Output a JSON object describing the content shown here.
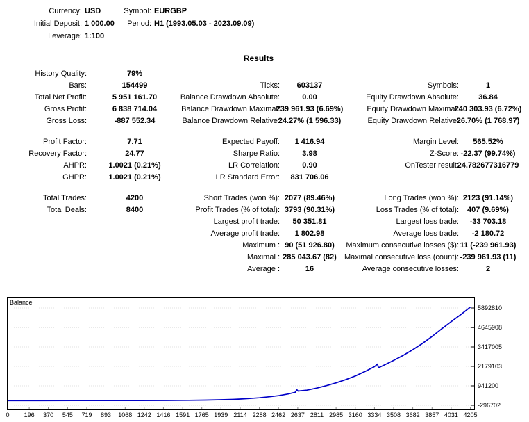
{
  "header": {
    "rows": [
      {
        "l1": "Currency:",
        "v1": "USD",
        "l2": "Symbol:",
        "v2": "EURGBP"
      },
      {
        "l1": "Initial Deposit:",
        "v1": "1 000.00",
        "l2": "Period:",
        "v2": "H1 (1993.05.03 - 2023.09.09)"
      },
      {
        "l1": "Leverage:",
        "v1": "1:100",
        "l2": "",
        "v2": ""
      }
    ]
  },
  "results": {
    "title": "Results",
    "rows": [
      [
        "History Quality:",
        "79%",
        "",
        "",
        "",
        ""
      ],
      [
        "Bars:",
        "154499",
        "Ticks:",
        "603137",
        "Symbols:",
        "1"
      ],
      [
        "Total Net Profit:",
        "5 951 161.70",
        "Balance Drawdown Absolute:",
        "0.00",
        "Equity Drawdown Absolute:",
        "36.84"
      ],
      [
        "Gross Profit:",
        "6 838 714.04",
        "Balance Drawdown Maximal:",
        "239 961.93 (6.69%)",
        "Equity Drawdown Maximal:",
        "240 303.93 (6.72%)"
      ],
      [
        "Gross Loss:",
        "-887 552.34",
        "Balance Drawdown Relative:",
        "24.27% (1 596.33)",
        "Equity Drawdown Relative:",
        "26.70% (1 768.97)"
      ],
      [
        "",
        "",
        "",
        "",
        "",
        ""
      ],
      [
        "Profit Factor:",
        "7.71",
        "Expected Payoff:",
        "1 416.94",
        "Margin Level:",
        "565.52%"
      ],
      [
        "Recovery Factor:",
        "24.77",
        "Sharpe Ratio:",
        "3.98",
        "Z-Score:",
        "-22.37 (99.74%)"
      ],
      [
        "AHPR:",
        "1.0021 (0.21%)",
        "LR Correlation:",
        "0.90",
        "OnTester result:",
        "24.782677316779"
      ],
      [
        "GHPR:",
        "1.0021 (0.21%)",
        "LR Standard Error:",
        "831 706.06",
        "",
        ""
      ],
      [
        "",
        "",
        "",
        "",
        "",
        ""
      ],
      [
        "Total Trades:",
        "4200",
        "Short Trades (won %):",
        "2077 (89.46%)",
        "Long Trades (won %):",
        "2123 (91.14%)"
      ],
      [
        "Total Deals:",
        "8400",
        "Profit Trades (% of total):",
        "3793 (90.31%)",
        "Loss Trades (% of total):",
        "407 (9.69%)"
      ],
      [
        "",
        "",
        "Largest profit trade:",
        "50 351.81",
        "Largest loss trade:",
        "-33 703.18"
      ],
      [
        "",
        "",
        "Average profit trade:",
        "1 802.98",
        "Average loss trade:",
        "-2 180.72"
      ],
      [
        "",
        "",
        "Maximum :",
        "90 (51 926.80)",
        "Maximum consecutive losses ($):",
        "11 (-239 961.93)"
      ],
      [
        "",
        "",
        "Maximal :",
        "285 043.67 (82)",
        "Maximal consecutive loss (count):",
        "-239 961.93 (11)"
      ],
      [
        "",
        "",
        "Average :",
        "16",
        "Average consecutive losses:",
        "2"
      ]
    ]
  },
  "chart_data": {
    "type": "line",
    "title": "Balance",
    "xlabel": "",
    "ylabel": "",
    "xlim": [
      0,
      4240
    ],
    "ylim": [
      -561967,
      6555972
    ],
    "y_ticks": [
      5892810,
      4645908,
      3417005,
      2179103,
      941200,
      -296702
    ],
    "x_ticks": [
      0,
      196,
      370,
      545,
      719,
      893,
      1068,
      1242,
      1416,
      1591,
      1765,
      1939,
      2114,
      2288,
      2462,
      2637,
      2811,
      2985,
      3160,
      3334,
      3508,
      3682,
      3857,
      4031,
      4205
    ],
    "grid": "light-dotted-horizontal",
    "legend_position": "top-left",
    "series": [
      {
        "name": "Balance",
        "color": "#0000C8",
        "points": [
          [
            0,
            1000
          ],
          [
            300,
            1700
          ],
          [
            600,
            2800
          ],
          [
            900,
            4600
          ],
          [
            1200,
            8000
          ],
          [
            1450,
            14000
          ],
          [
            1650,
            23000
          ],
          [
            1800,
            36000
          ],
          [
            1939,
            55000
          ],
          [
            2050,
            80000
          ],
          [
            2114,
            100000
          ],
          [
            2200,
            135000
          ],
          [
            2288,
            180000
          ],
          [
            2380,
            245000
          ],
          [
            2462,
            315000
          ],
          [
            2550,
            425000
          ],
          [
            2615,
            535000
          ],
          [
            2628,
            700000
          ],
          [
            2640,
            610000
          ],
          [
            2720,
            665000
          ],
          [
            2811,
            800000
          ],
          [
            2900,
            960000
          ],
          [
            2985,
            1130000
          ],
          [
            3070,
            1330000
          ],
          [
            3160,
            1570000
          ],
          [
            3250,
            1860000
          ],
          [
            3334,
            2160000
          ],
          [
            3362,
            2330000
          ],
          [
            3370,
            2090000
          ],
          [
            3430,
            2290000
          ],
          [
            3508,
            2560000
          ],
          [
            3600,
            2900000
          ],
          [
            3682,
            3240000
          ],
          [
            3770,
            3640000
          ],
          [
            3857,
            4080000
          ],
          [
            3940,
            4540000
          ],
          [
            4031,
            5020000
          ],
          [
            4120,
            5480000
          ],
          [
            4205,
            5952161.7
          ]
        ]
      }
    ]
  }
}
